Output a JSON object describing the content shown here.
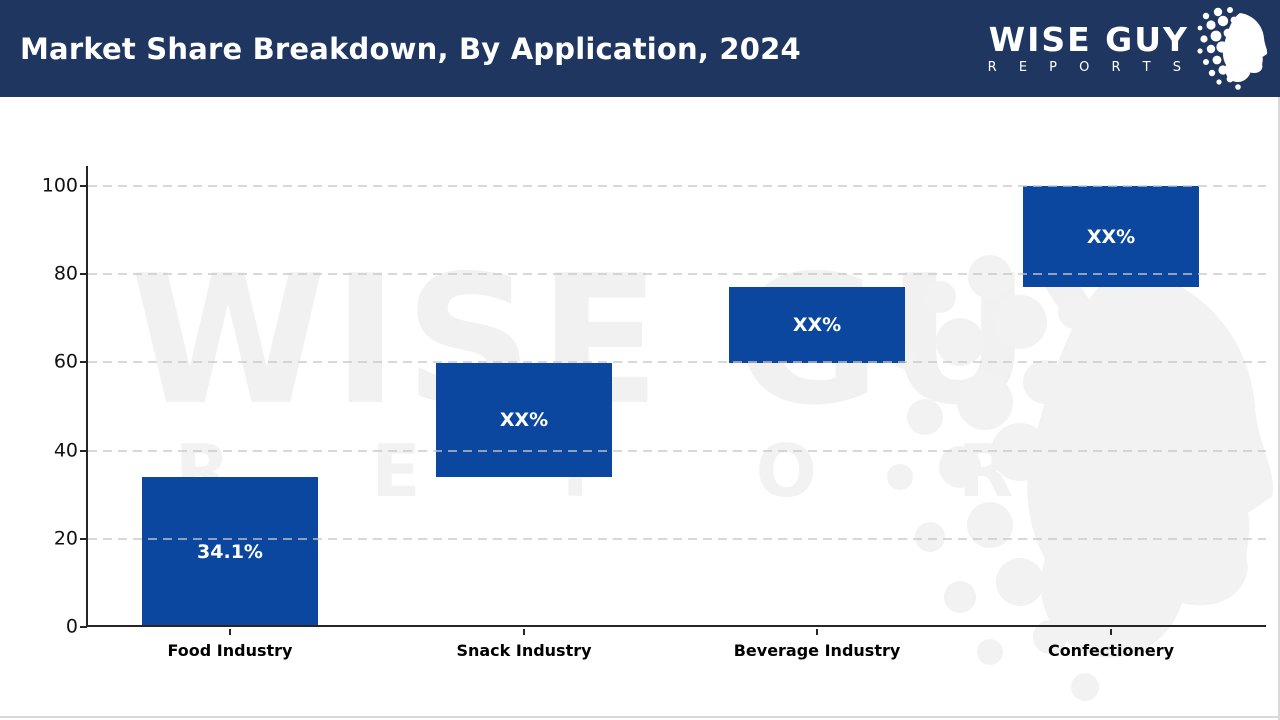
{
  "header": {
    "title": "Market Share Breakdown, By Application, 2024",
    "bg_color": "#1f3660",
    "logo": {
      "wordmark": "WISE GUY",
      "subtext": "R E P O R T S"
    }
  },
  "watermark": {
    "wordmark": "WISE GUY",
    "subtext": "R E P O R T S"
  },
  "chart_data": {
    "type": "bar",
    "subtype": "floating-waterfall",
    "title": "Market Share Breakdown, By Application, 2024",
    "categories": [
      "Food Industry",
      "Snack Industry",
      "Beverage Industry",
      "Confectionery"
    ],
    "segments": [
      {
        "category": "Food Industry",
        "start": 0,
        "end": 34.1,
        "label": "34.1%"
      },
      {
        "category": "Snack Industry",
        "start": 34.1,
        "end": 59.8,
        "label": "XX%"
      },
      {
        "category": "Beverage Industry",
        "start": 59.8,
        "end": 77,
        "label": "XX%"
      },
      {
        "category": "Confectionery",
        "start": 77,
        "end": 100,
        "label": "XX%"
      }
    ],
    "xlabel": "",
    "ylabel": "",
    "ylim": [
      0,
      100
    ],
    "yticks": [
      0,
      20,
      40,
      60,
      80,
      100
    ],
    "grid": "horizontal-dashed",
    "legend": "none",
    "bar_color": "#0b479e",
    "bar_label_color": "#ffffff",
    "axis_color": "#262626",
    "gridline_color": "#c7c7c7"
  }
}
